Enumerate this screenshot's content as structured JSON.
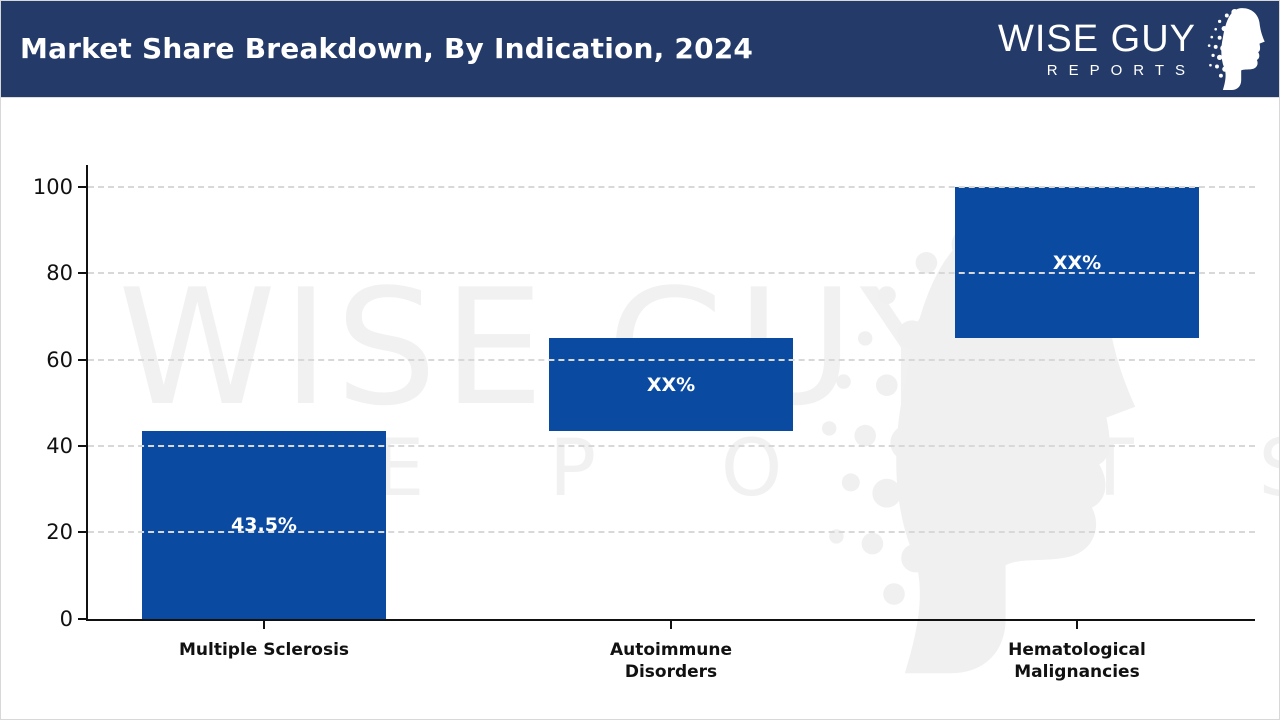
{
  "header": {
    "title": "Market Share Breakdown, By Indication, 2024",
    "logo": {
      "line1": "WISE GUY",
      "line2": "REPORTS"
    }
  },
  "watermark": {
    "line1": "WISE GUY",
    "line2": "R E P O R T S"
  },
  "colors": {
    "header_bg": "#243a68",
    "bar_blue": "#0b4aa1",
    "gridline": "#d8d8d8",
    "axis": "#111111",
    "watermark_gray": "#f1f1f1"
  },
  "chart_data": {
    "type": "bar",
    "subtype": "waterfall",
    "title": "Market Share Breakdown, By Indication, 2024",
    "categories": [
      "Multiple Sclerosis",
      "Autoimmune Disorders",
      "Hematological Malignancies"
    ],
    "x_labels": [
      "Multiple Sclerosis",
      "Autoimmune\nDisorders",
      "Hematological\nMalignancies"
    ],
    "segments": [
      {
        "category": "Multiple Sclerosis",
        "start": 0,
        "end": 43.5,
        "label": "43.5%"
      },
      {
        "category": "Autoimmune Disorders",
        "start": 43.5,
        "end": 65,
        "label": "XX%"
      },
      {
        "category": "Hematological Malignancies",
        "start": 65,
        "end": 100,
        "label": "XX%"
      }
    ],
    "y_ticks": [
      0,
      20,
      40,
      60,
      80,
      100
    ],
    "ylim": [
      0,
      105
    ],
    "grid": true,
    "legend": false,
    "bar_color": "#0b4aa1"
  }
}
